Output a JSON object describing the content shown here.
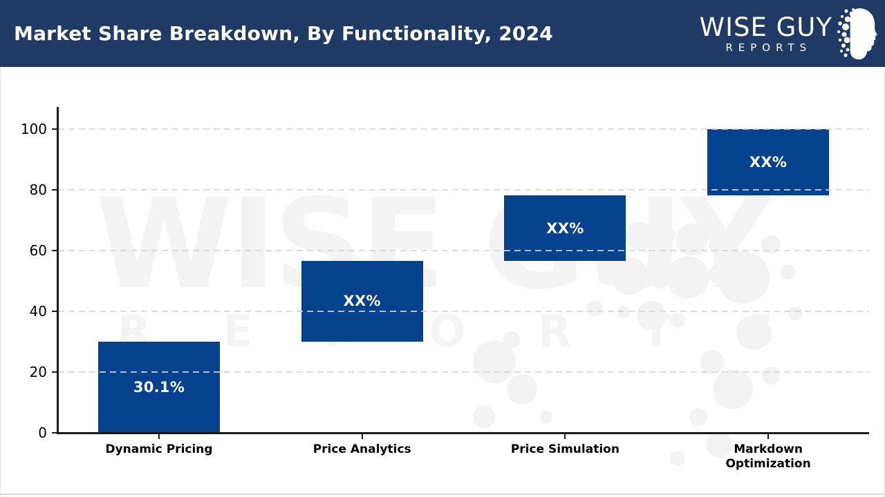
{
  "header": {
    "title": "Market Share Breakdown, By Functionality, 2024",
    "logo": {
      "name_top": "WISE GUY",
      "name_bottom": "REPORTS"
    }
  },
  "watermark": {
    "line1": "WISE GUY",
    "line2": "REPORTS"
  },
  "chart_data": {
    "type": "bar",
    "variant": "waterfall",
    "title": "Market Share Breakdown, By Functionality, 2024",
    "categories": [
      "Dynamic Pricing",
      "Price Analytics",
      "Price Simulation",
      "Markdown Optimization"
    ],
    "segments": [
      {
        "category": "Dynamic Pricing",
        "start": 0,
        "end": 30.1,
        "value": 30.1,
        "label": "30.1%"
      },
      {
        "category": "Price Analytics",
        "start": 30.1,
        "end": 56.6,
        "value": 26.5,
        "label": "XX%"
      },
      {
        "category": "Price Simulation",
        "start": 56.6,
        "end": 78.2,
        "value": 21.6,
        "label": "XX%"
      },
      {
        "category": "Markdown Optimization",
        "start": 78.2,
        "end": 100,
        "value": 21.8,
        "label": "XX%"
      }
    ],
    "yticks": [
      0,
      20,
      40,
      60,
      80,
      100
    ],
    "ylim": [
      0,
      107
    ],
    "grid": "dashed-horizontal",
    "legend": "none",
    "xlabel": "",
    "ylabel": ""
  },
  "colors": {
    "header_bg": "#203a66",
    "bar": "#04428e",
    "bar_label": "#ffffff",
    "axis": "#1a1a1a",
    "tick_label": "#000000",
    "gridline": "#d8d8d8",
    "watermark": "#f3f3f3",
    "background": "#ffffff"
  }
}
